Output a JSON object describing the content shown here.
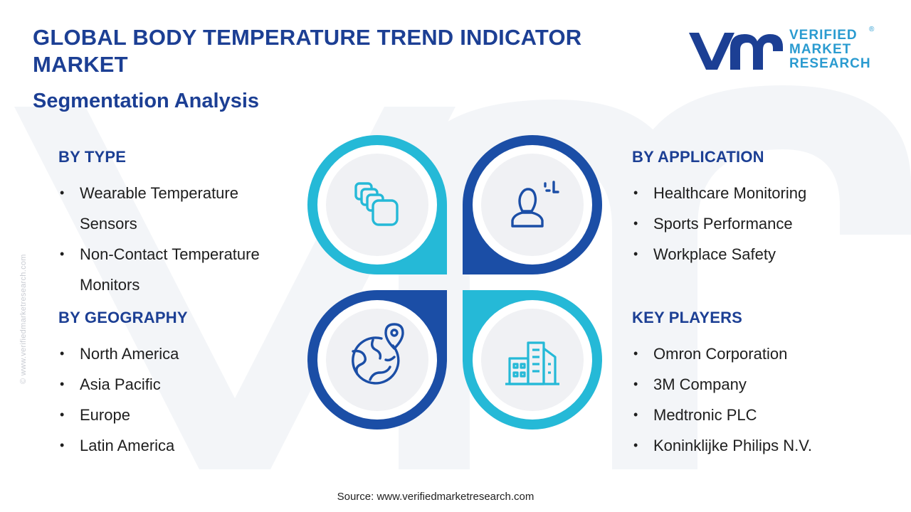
{
  "header": {
    "title": "GLOBAL BODY TEMPERATURE TREND INDICATOR MARKET",
    "subtitle": "Segmentation Analysis"
  },
  "logo": {
    "line1": "VERIFIED",
    "line2": "MARKET",
    "line3": "RESEARCH",
    "registered": "®"
  },
  "side_url": "© www.verifiedmarketresearch.com",
  "segments": {
    "type": {
      "heading": "BY TYPE",
      "items": [
        "Wearable Temperature Sensors",
        "Non-Contact Temperature Monitors"
      ]
    },
    "geography": {
      "heading": "BY GEOGRAPHY",
      "items": [
        "North America",
        "Asia Pacific",
        "Europe",
        "Latin America"
      ]
    },
    "application": {
      "heading": "BY APPLICATION",
      "items": [
        "Healthcare Monitoring",
        "Sports Performance",
        "Workplace Safety"
      ]
    },
    "key_players": {
      "heading": "KEY PLAYERS",
      "items": [
        "Omron Corporation",
        "3M Company",
        "Medtronic PLC",
        "Koninklijke Philips N.V."
      ]
    }
  },
  "center_icons": {
    "top_left": "layers-icon",
    "top_right": "user-focus-icon",
    "bottom_left": "globe-location-icon",
    "bottom_right": "buildings-icon"
  },
  "colors": {
    "navy": "#1c3f94",
    "cyan": "#25b9d7",
    "dark_blue": "#1b4ea6",
    "logo_blue": "#2a9bd0",
    "circle_bg": "#f0f1f4"
  },
  "footer": {
    "source": "Source: www.verifiedmarketresearch.com"
  }
}
